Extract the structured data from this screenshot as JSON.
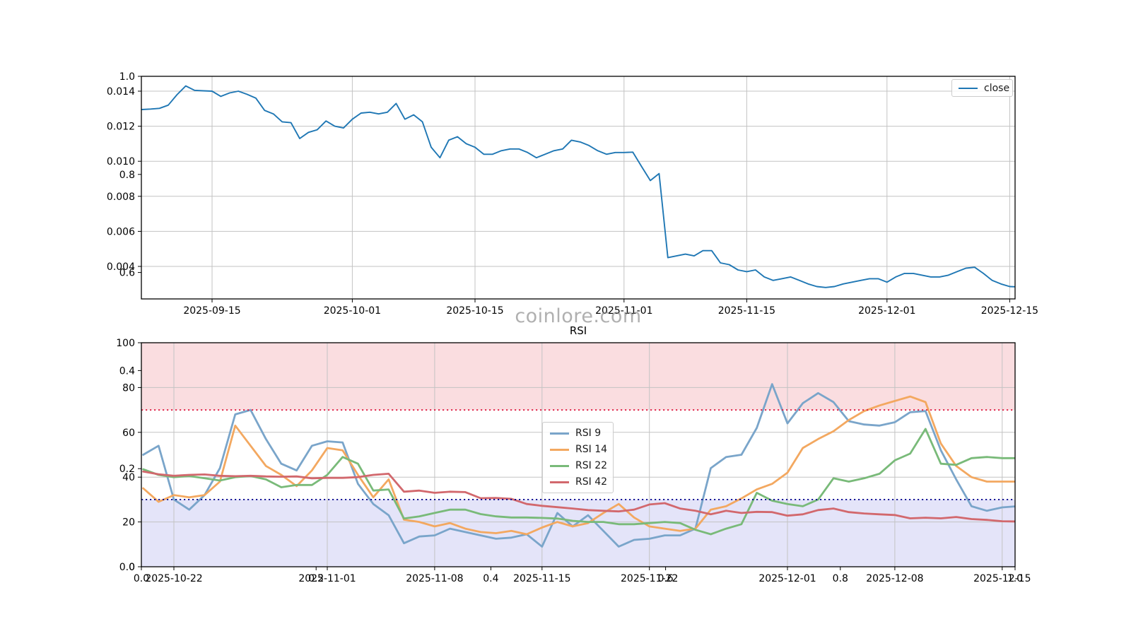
{
  "watermark": "coinlore.com",
  "overlay_axis": {
    "x_tick_labels": [
      "0.0",
      "0.2",
      "0.4",
      "0.6",
      "0.8",
      "1.0"
    ],
    "y_tick_labels": [
      "0.0",
      "0.2",
      "0.4",
      "0.6",
      "0.8",
      "1.0"
    ]
  },
  "chart_data": [
    {
      "type": "line",
      "title": "",
      "legend": [
        "close"
      ],
      "legend_position": "upper right",
      "grid": true,
      "ylim": [
        0.00215,
        0.01485
      ],
      "yticks": [
        0.004,
        0.006,
        0.008,
        0.01,
        0.012,
        0.014
      ],
      "ytick_labels": [
        "0.004",
        "0.006",
        "0.008",
        "0.010",
        "0.012",
        "0.014"
      ],
      "xtick_labels": [
        "2025-09-15",
        "2025-10-01",
        "2025-10-15",
        "2025-11-01",
        "2025-11-15",
        "2025-12-01",
        "2025-12-15"
      ],
      "x": [
        "2025-09-07",
        "2025-09-08",
        "2025-09-09",
        "2025-09-10",
        "2025-09-11",
        "2025-09-12",
        "2025-09-13",
        "2025-09-14",
        "2025-09-15",
        "2025-09-16",
        "2025-09-17",
        "2025-09-18",
        "2025-09-19",
        "2025-09-20",
        "2025-09-21",
        "2025-09-22",
        "2025-09-23",
        "2025-09-24",
        "2025-09-25",
        "2025-09-26",
        "2025-09-27",
        "2025-09-28",
        "2025-09-29",
        "2025-09-30",
        "2025-10-01",
        "2025-10-02",
        "2025-10-03",
        "2025-10-04",
        "2025-10-05",
        "2025-10-06",
        "2025-10-07",
        "2025-10-08",
        "2025-10-09",
        "2025-10-10",
        "2025-10-11",
        "2025-10-12",
        "2025-10-13",
        "2025-10-14",
        "2025-10-15",
        "2025-10-16",
        "2025-10-17",
        "2025-10-18",
        "2025-10-19",
        "2025-10-20",
        "2025-10-21",
        "2025-10-22",
        "2025-10-23",
        "2025-10-24",
        "2025-10-25",
        "2025-10-26",
        "2025-10-27",
        "2025-10-28",
        "2025-10-29",
        "2025-10-30",
        "2025-10-31",
        "2025-11-01",
        "2025-11-02",
        "2025-11-03",
        "2025-11-04",
        "2025-11-05",
        "2025-11-06",
        "2025-11-07",
        "2025-11-08",
        "2025-11-09",
        "2025-11-10",
        "2025-11-11",
        "2025-11-12",
        "2025-11-13",
        "2025-11-14",
        "2025-11-15",
        "2025-11-16",
        "2025-11-17",
        "2025-11-18",
        "2025-11-19",
        "2025-11-20",
        "2025-11-21",
        "2025-11-22",
        "2025-11-23",
        "2025-11-24",
        "2025-11-25",
        "2025-11-26",
        "2025-11-27",
        "2025-11-28",
        "2025-11-29",
        "2025-11-30",
        "2025-12-01",
        "2025-12-02",
        "2025-12-03",
        "2025-12-04",
        "2025-12-05",
        "2025-12-06",
        "2025-12-07",
        "2025-12-08",
        "2025-12-09",
        "2025-12-10",
        "2025-12-11",
        "2025-12-12",
        "2025-12-13",
        "2025-12-14",
        "2025-12-15",
        "2025-12-16"
      ],
      "series": [
        {
          "name": "close",
          "color": "#1f77b4",
          "values": [
            0.01295,
            0.01298,
            0.01302,
            0.0132,
            0.0138,
            0.0143,
            0.01405,
            0.01402,
            0.014,
            0.0137,
            0.0139,
            0.014,
            0.01382,
            0.0136,
            0.0129,
            0.0127,
            0.01225,
            0.0122,
            0.0113,
            0.01165,
            0.0118,
            0.0123,
            0.012,
            0.0119,
            0.0124,
            0.01275,
            0.0128,
            0.0127,
            0.0128,
            0.0133,
            0.0124,
            0.01265,
            0.01225,
            0.0108,
            0.0102,
            0.0112,
            0.0114,
            0.011,
            0.0108,
            0.0104,
            0.0104,
            0.0106,
            0.0107,
            0.0107,
            0.0105,
            0.0102,
            0.0104,
            0.0106,
            0.0107,
            0.0112,
            0.0111,
            0.0109,
            0.0106,
            0.0104,
            0.0105,
            0.0105,
            0.01052,
            0.0097,
            0.0089,
            0.0093,
            0.0045,
            0.0046,
            0.0047,
            0.0046,
            0.0049,
            0.0049,
            0.0042,
            0.0041,
            0.0038,
            0.0037,
            0.0038,
            0.0034,
            0.0032,
            0.0033,
            0.0034,
            0.0032,
            0.003,
            0.00285,
            0.0028,
            0.00285,
            0.003,
            0.0031,
            0.0032,
            0.0033,
            0.0033,
            0.0031,
            0.0034,
            0.0036,
            0.0036,
            0.0035,
            0.0034,
            0.0034,
            0.0035,
            0.0037,
            0.0039,
            0.00395,
            0.0036,
            0.0032,
            0.003,
            0.00285,
            0.00283
          ]
        }
      ]
    },
    {
      "type": "line",
      "title": "RSI",
      "legend": [
        "RSI 9",
        "RSI 14",
        "RSI 22",
        "RSI 42"
      ],
      "legend_position": "center",
      "grid": true,
      "ylim": [
        0,
        100
      ],
      "yticks": [
        0,
        20,
        40,
        60,
        80,
        100
      ],
      "ytick_labels": [
        "0",
        "20",
        "40",
        "60",
        "80",
        "100"
      ],
      "xtick_labels": [
        "2025-10-22",
        "2025-11-01",
        "2025-11-08",
        "2025-11-15",
        "2025-11-22",
        "2025-12-01",
        "2025-12-08",
        "2025-12-15"
      ],
      "bands": [
        {
          "name": "overbought-band",
          "y0": 70,
          "y1": 100,
          "color": "rgba(222,45,60,0.16)"
        },
        {
          "name": "oversold-band",
          "y0": 0,
          "y1": 30,
          "color": "rgba(75,75,215,0.15)"
        }
      ],
      "hlines": [
        {
          "name": "overbought-threshold",
          "y": 70,
          "color": "#dc143c",
          "style": "dotted"
        },
        {
          "name": "oversold-threshold",
          "y": 30,
          "color": "#00008b",
          "style": "dotted"
        }
      ],
      "x": [
        "2025-10-20",
        "2025-10-21",
        "2025-10-22",
        "2025-10-23",
        "2025-10-24",
        "2025-10-25",
        "2025-10-26",
        "2025-10-27",
        "2025-10-28",
        "2025-10-29",
        "2025-10-30",
        "2025-10-31",
        "2025-11-01",
        "2025-11-02",
        "2025-11-03",
        "2025-11-04",
        "2025-11-05",
        "2025-11-06",
        "2025-11-07",
        "2025-11-08",
        "2025-11-09",
        "2025-11-10",
        "2025-11-11",
        "2025-11-12",
        "2025-11-13",
        "2025-11-14",
        "2025-11-15",
        "2025-11-16",
        "2025-11-17",
        "2025-11-18",
        "2025-11-19",
        "2025-11-20",
        "2025-11-21",
        "2025-11-22",
        "2025-11-23",
        "2025-11-24",
        "2025-11-25",
        "2025-11-26",
        "2025-11-27",
        "2025-11-28",
        "2025-11-29",
        "2025-11-30",
        "2025-12-01",
        "2025-12-02",
        "2025-12-03",
        "2025-12-04",
        "2025-12-05",
        "2025-12-06",
        "2025-12-07",
        "2025-12-08",
        "2025-12-09",
        "2025-12-10",
        "2025-12-11",
        "2025-12-12",
        "2025-12-13",
        "2025-12-14",
        "2025-12-15",
        "2025-12-16"
      ],
      "series": [
        {
          "name": "RSI 9",
          "color": "#7aa5ca",
          "values": [
            50,
            54,
            30,
            25.5,
            32,
            44,
            68,
            70,
            57,
            46,
            43,
            54,
            56,
            55.5,
            37,
            28,
            23,
            10.5,
            13.5,
            14,
            17,
            15.5,
            14,
            12.5,
            13,
            14.5,
            9,
            24,
            18,
            23,
            16,
            9,
            12,
            12.5,
            14,
            14,
            17,
            44,
            49,
            50,
            62,
            81.5,
            64,
            73,
            77.5,
            73.5,
            65,
            63.5,
            63,
            64.5,
            69,
            69.5,
            52,
            39,
            27,
            25,
            26.5,
            27
          ]
        },
        {
          "name": "RSI 14",
          "color": "#f3a860",
          "values": [
            35,
            29,
            32,
            31,
            32,
            38,
            63,
            54,
            45,
            41,
            36,
            43,
            53,
            52,
            41,
            31,
            39,
            21,
            20,
            18,
            19.5,
            17,
            15.5,
            15,
            16,
            14.5,
            17.5,
            20,
            18,
            19.5,
            24,
            28,
            22,
            18,
            17,
            16,
            17,
            25.5,
            27,
            30.5,
            34.5,
            37,
            42,
            53,
            57,
            60.5,
            65.5,
            69.5,
            72,
            74,
            76,
            73.5,
            55,
            45,
            40,
            38,
            38,
            38
          ]
        },
        {
          "name": "RSI 22",
          "color": "#79ba79",
          "values": [
            43.5,
            41,
            40,
            40.5,
            39.5,
            38.5,
            40,
            40.5,
            39,
            35.5,
            36.5,
            36.5,
            41,
            49,
            46,
            34,
            34.5,
            21.5,
            22.5,
            24,
            25.5,
            25.5,
            23.5,
            22.5,
            22,
            22,
            21.8,
            21.5,
            20.5,
            20,
            20,
            19,
            19,
            19.5,
            20,
            19.5,
            16.5,
            14.5,
            17,
            19,
            33,
            29.5,
            28,
            27,
            30,
            39.5,
            38,
            39.5,
            41.5,
            47.5,
            50.5,
            61.5,
            46,
            45.5,
            48.5,
            49,
            48.5,
            48.5
          ]
        },
        {
          "name": "RSI 42",
          "color": "#d2686d",
          "values": [
            42.5,
            41.3,
            40.6,
            41,
            41.2,
            40.6,
            40.4,
            40.6,
            40.3,
            40.2,
            40.3,
            39.5,
            39.7,
            39.7,
            40,
            41,
            41.5,
            33.5,
            34,
            33,
            33.5,
            33.3,
            30.6,
            30.7,
            30.3,
            28,
            27.2,
            26.6,
            26,
            25.3,
            25,
            24.7,
            25.5,
            27.8,
            28.4,
            26,
            25,
            23.4,
            25,
            24,
            24.5,
            24.4,
            22.8,
            23.4,
            25.3,
            26,
            24.4,
            23.8,
            23.4,
            23.1,
            21.6,
            21.9,
            21.6,
            22.2,
            21.3,
            20.9,
            20.3,
            20.2
          ]
        }
      ]
    }
  ]
}
